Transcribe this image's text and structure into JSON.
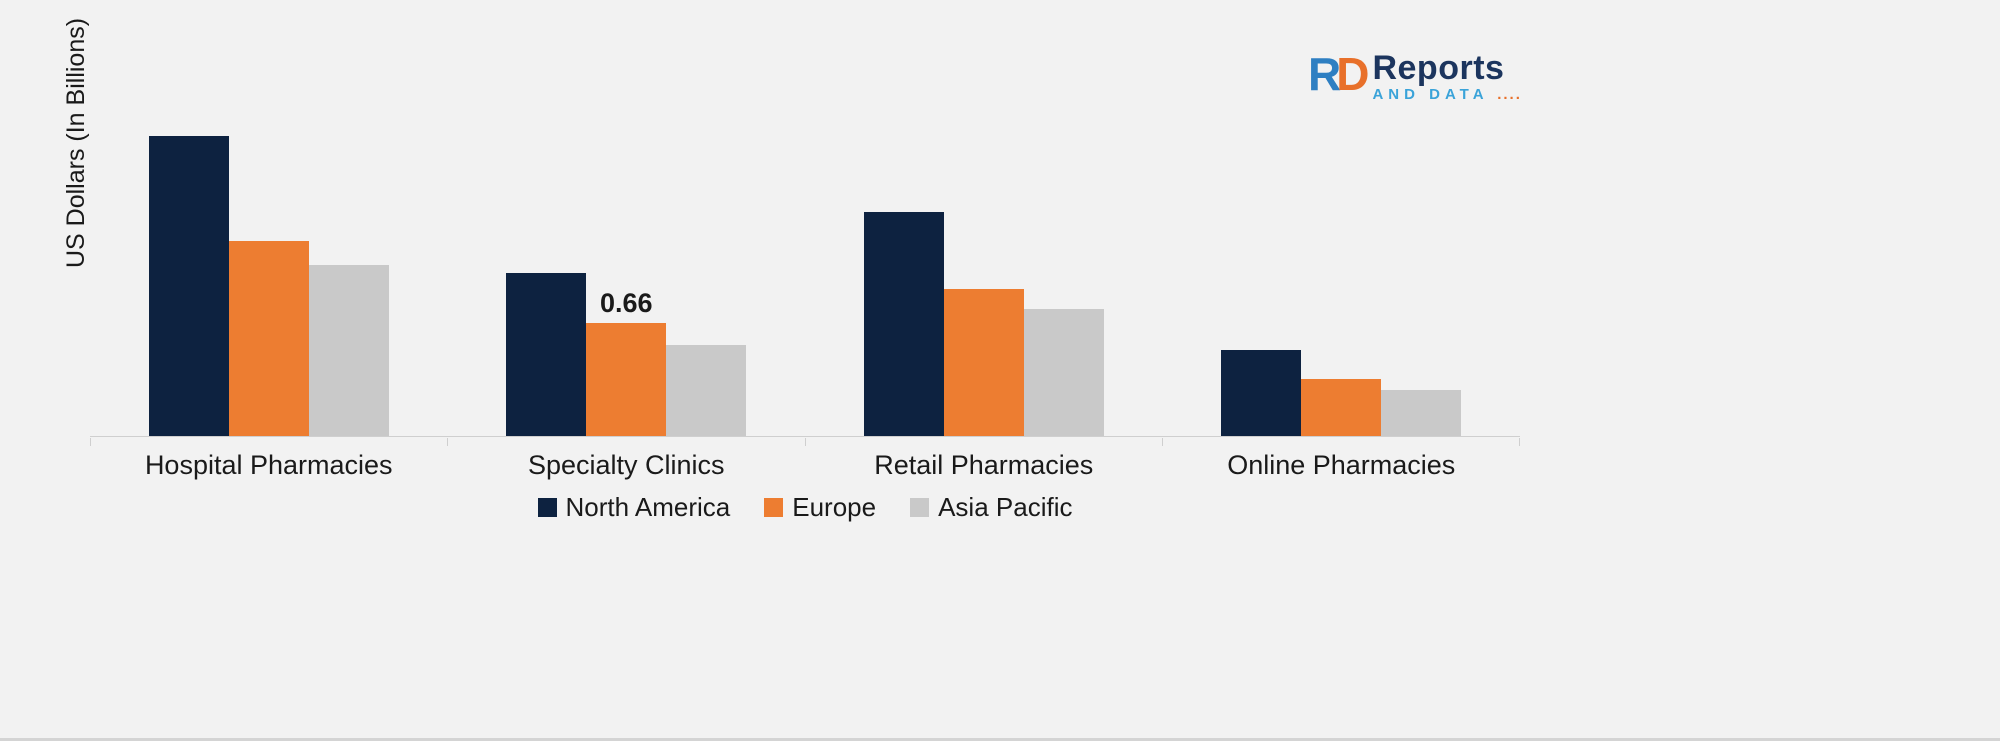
{
  "logo": {
    "mark_r": "R",
    "mark_d": "D",
    "title": "Reports",
    "subtitle": "AND DATA",
    "subtitle_dots": "...."
  },
  "chart_data": {
    "type": "bar",
    "title": "",
    "xlabel": "",
    "ylabel": "US Dollars (In Billions)",
    "categories": [
      "Hospital Pharmacies",
      "Specialty Clinics",
      "Retail Pharmacies",
      "Online Pharmacies"
    ],
    "series": [
      {
        "name": "North America",
        "color": "#0d2240",
        "values": [
          1.75,
          0.95,
          1.31,
          0.5
        ],
        "value_labels": [
          "",
          "",
          "",
          ""
        ]
      },
      {
        "name": "Europe",
        "color": "#ed7d31",
        "values": [
          1.14,
          0.66,
          0.86,
          0.33
        ],
        "value_labels": [
          "",
          "0.66",
          "",
          ""
        ]
      },
      {
        "name": "Asia Pacific",
        "color": "#c9c9c9",
        "values": [
          1.0,
          0.53,
          0.74,
          0.27
        ],
        "value_labels": [
          "",
          "",
          "",
          ""
        ]
      }
    ],
    "ylim": [
      0,
      1.85
    ],
    "grid": false,
    "legend_position": "bottom",
    "data_label_annotations": [
      {
        "category": "Specialty Clinics",
        "series": "Europe",
        "text": "0.66"
      }
    ],
    "colors": {
      "background": "#f2f2f2",
      "axis": "#cfcfcf",
      "text": "#1a1a1a"
    }
  }
}
